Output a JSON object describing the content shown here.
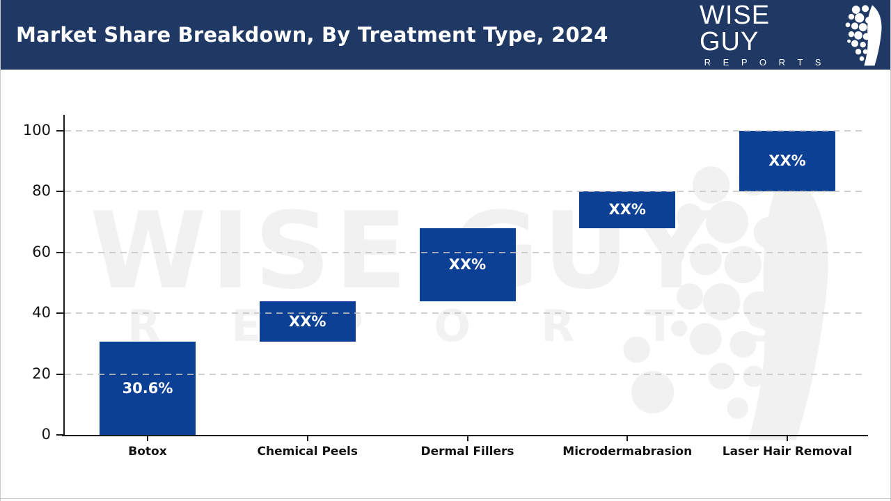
{
  "header": {
    "title": "Market Share Breakdown, By Treatment Type, 2024",
    "logo": {
      "wordmark": "WISE GUY",
      "subtext": "R E P O R T S",
      "icon": "dotted-head-icon"
    }
  },
  "watermark": {
    "wordmark": "WISE GUY",
    "subtext": "R E P O R T S"
  },
  "colors": {
    "header_bg": "#1f3864",
    "bar": "#0b4095",
    "bar_label": "#ffffff",
    "axis": "#1a1a1a",
    "grid": "#d6d6d6",
    "watermark": "#f1f1f1",
    "page_border": "#c9c9c9"
  },
  "chart_data": {
    "type": "bar",
    "subtype": "waterfall",
    "title": "Market Share Breakdown, By Treatment Type, 2024",
    "categories": [
      "Botox",
      "Chemical Peels",
      "Dermal Fillers",
      "Microdermabrasion",
      "Laser Hair Removal"
    ],
    "series": [
      {
        "name": "Market Share (%)",
        "segments": [
          {
            "category": "Botox",
            "start": 0,
            "end": 30.6,
            "label": "30.6%"
          },
          {
            "category": "Chemical Peels",
            "start": 30.6,
            "end": 44,
            "label": "XX%"
          },
          {
            "category": "Dermal Fillers",
            "start": 44,
            "end": 68,
            "label": "XX%"
          },
          {
            "category": "Microdermabrasion",
            "start": 68,
            "end": 80,
            "label": "XX%"
          },
          {
            "category": "Laser Hair Removal",
            "start": 80,
            "end": 100,
            "label": "XX%"
          }
        ]
      }
    ],
    "yticks": [
      0,
      20,
      40,
      60,
      80,
      100
    ],
    "ylim": [
      0,
      100
    ],
    "xlabel": "",
    "ylabel": "",
    "grid": "dashed-horizontal",
    "legend": "none"
  }
}
